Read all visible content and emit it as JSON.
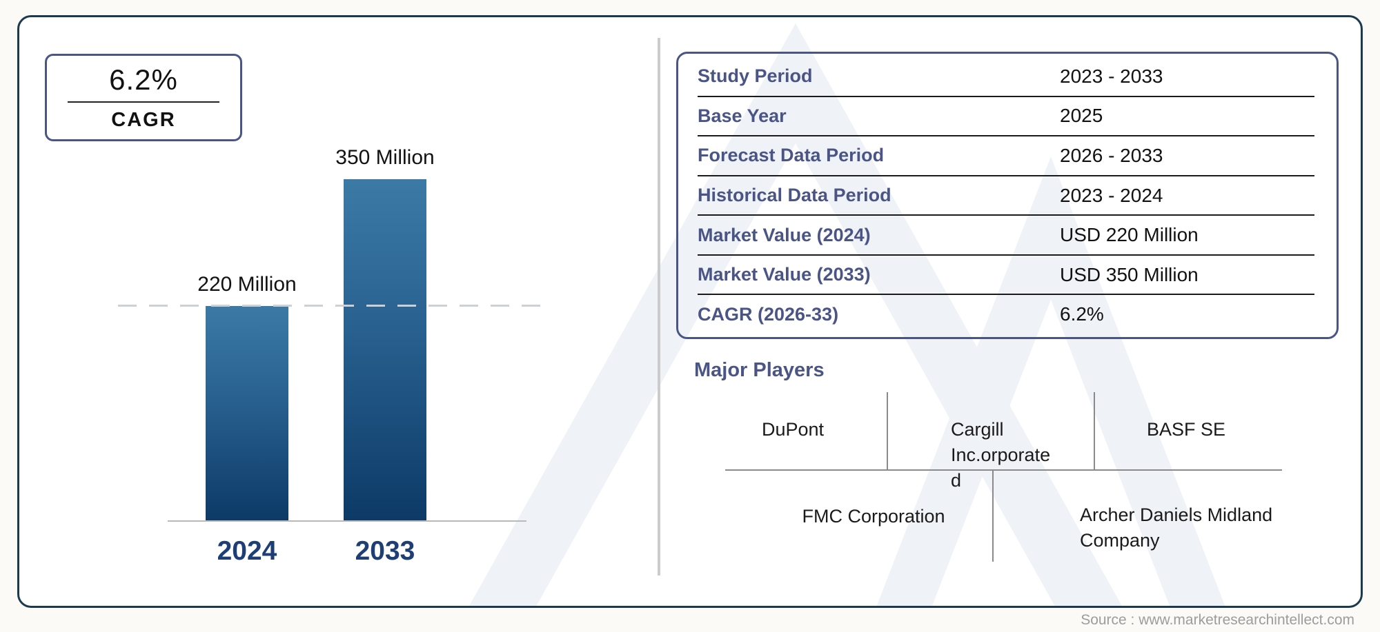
{
  "cagr_badge": {
    "value": "6.2%",
    "label": "CAGR"
  },
  "chart_data": {
    "type": "bar",
    "title": "",
    "categories": [
      "2024",
      "2033"
    ],
    "values": [
      220,
      350
    ],
    "unit": "USD Million",
    "bar_labels": [
      "220 Million",
      "350 Million"
    ],
    "reference_line": 220,
    "ylim": [
      0,
      380
    ],
    "grid": false,
    "legend": "none",
    "bar_color_top": "#3c7aa6",
    "bar_color_bottom": "#0d3a67"
  },
  "summary_table": {
    "rows": [
      {
        "label": "Study Period",
        "value": "2023 - 2033"
      },
      {
        "label": "Base Year",
        "value": "2025"
      },
      {
        "label": "Forecast Data Period",
        "value": "2026 - 2033"
      },
      {
        "label": "Historical Data Period",
        "value": "2023 - 2024"
      },
      {
        "label": "Market Value (2024)",
        "value": "USD 220 Million"
      },
      {
        "label": "Market Value (2033)",
        "value": "USD 350 Million"
      },
      {
        "label": "CAGR (2026-33)",
        "value": "6.2%"
      }
    ]
  },
  "major_players": {
    "heading": "Major Players",
    "top": [
      "DuPont",
      "Cargill\nInc.orporate\nd",
      "BASF SE"
    ],
    "bottom": [
      "FMC Corporation",
      "Archer Daniels Midland\nCompany"
    ]
  },
  "source": "Source : www.marketresearchintellect.com",
  "colors": {
    "accent_slate": "#4a5585",
    "year_navy": "#1e3e76",
    "container_border": "#1b3a50",
    "divider_gray": "#cbcbcb",
    "watermark": "#eff2f7"
  }
}
